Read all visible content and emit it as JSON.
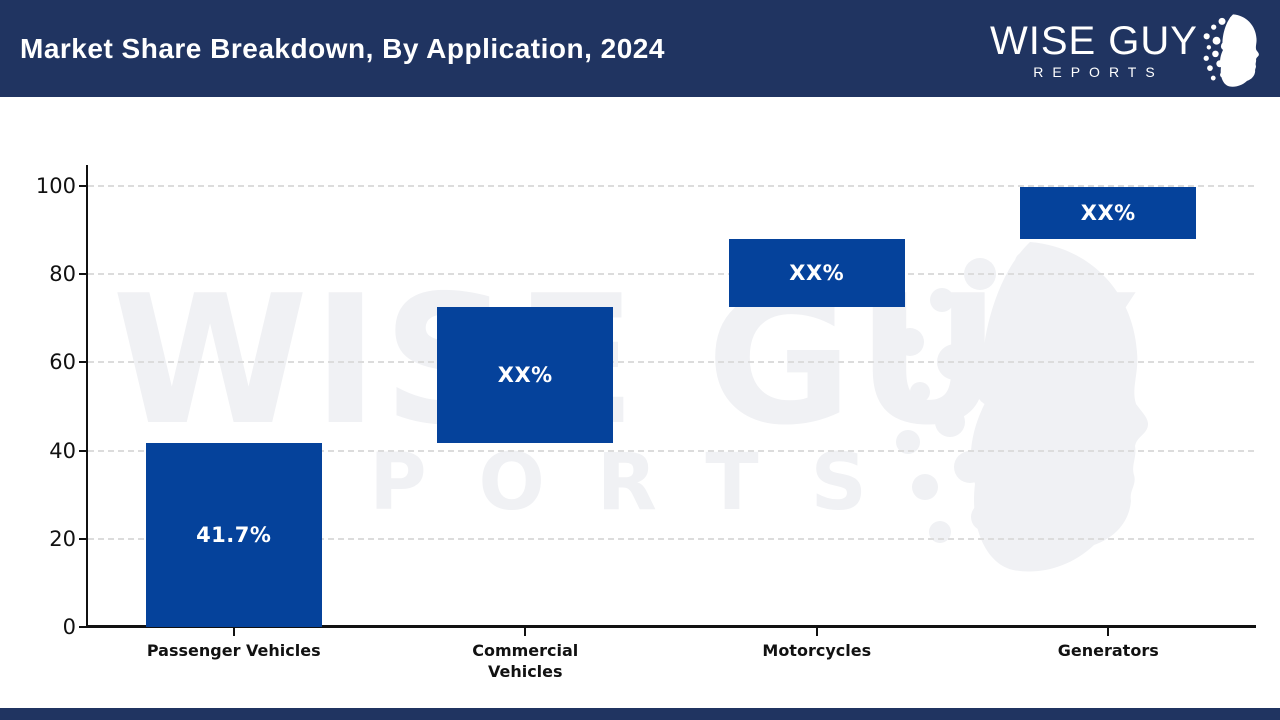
{
  "header": {
    "title": "Market Share Breakdown, By Application, 2024",
    "logo": {
      "line1": "WISE GUY",
      "line2": "REPORTS"
    }
  },
  "watermark": {
    "line1": "WISE GUY",
    "line2": "REPORTS"
  },
  "footer": {},
  "chart_data": {
    "type": "bar",
    "subtype": "waterfall",
    "title": "Market Share Breakdown, By Application, 2024",
    "categories": [
      "Passenger Vehicles",
      "Commercial\nVehicles",
      "Motorcycles",
      "Generators"
    ],
    "segments": [
      {
        "category": "Passenger Vehicles",
        "start": 0,
        "end": 41.7,
        "label": "41.7%"
      },
      {
        "category": "Commercial Vehicles",
        "start": 41.7,
        "end": 72.6,
        "label": "XX%"
      },
      {
        "category": "Motorcycles",
        "start": 72.6,
        "end": 88.0,
        "label": "XX%"
      },
      {
        "category": "Generators",
        "start": 88.0,
        "end": 99.8,
        "label": "XX%"
      }
    ],
    "xlabel": "",
    "ylabel": "",
    "yticks": [
      0,
      20,
      40,
      60,
      80,
      100
    ],
    "ylim": [
      0,
      104
    ],
    "grid": "dashed-horizontal",
    "legend": "none",
    "bar_color": "#05429b",
    "bar_label_color": "#ffffff"
  },
  "colors": {
    "header_bg": "#203461",
    "footer_bg": "#203461",
    "axis": "#111111",
    "grid": "#dcdcdc",
    "watermark": "#f0f1f4"
  }
}
